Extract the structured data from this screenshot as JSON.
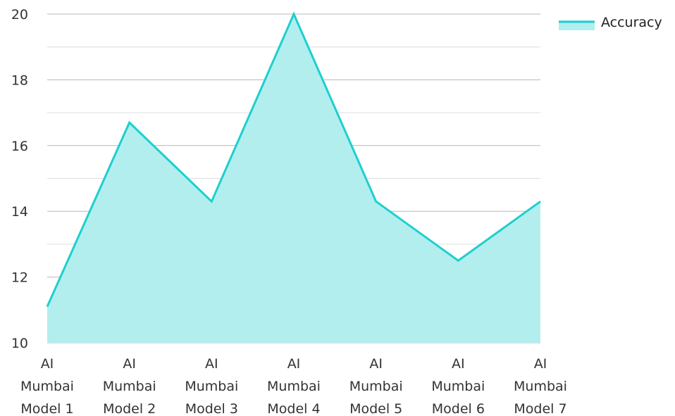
{
  "chart_data": {
    "type": "area",
    "title": "",
    "xlabel": "",
    "ylabel": "",
    "categories": [
      [
        "AI",
        "Mumbai",
        "Model 1"
      ],
      [
        "AI",
        "Mumbai",
        "Model 2"
      ],
      [
        "AI",
        "Mumbai",
        "Model 3"
      ],
      [
        "AI",
        "Mumbai",
        "Model 4"
      ],
      [
        "AI",
        "Mumbai",
        "Model 5"
      ],
      [
        "AI",
        "Mumbai",
        "Model 6"
      ],
      [
        "AI",
        "Mumbai",
        "Model 7"
      ]
    ],
    "series": [
      {
        "name": "Accuracy",
        "values": [
          11.1,
          16.7,
          14.3,
          20.0,
          14.3,
          12.5,
          14.3
        ]
      }
    ],
    "ylim": [
      10,
      20
    ],
    "yticks": [
      10,
      12,
      14,
      16,
      18,
      20
    ],
    "grid": true,
    "legend_position": "top-right",
    "colors": {
      "line": "#1ecfcf",
      "fill": "#b2eeee",
      "major_grid": "#b8b8b8",
      "minor_grid": "#dddddd"
    }
  }
}
